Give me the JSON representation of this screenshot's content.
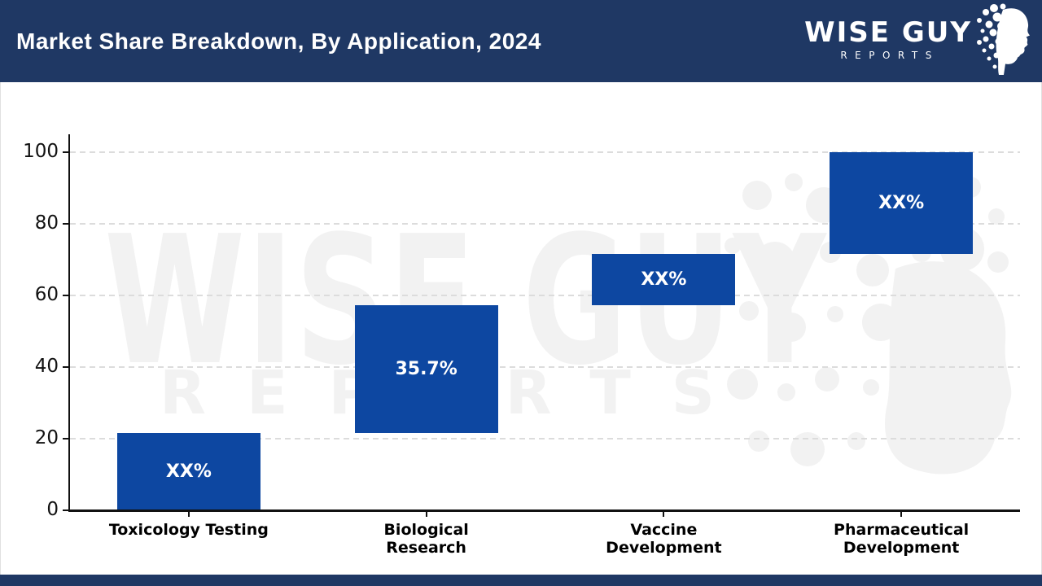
{
  "header": {
    "title": "Market Share Breakdown, By Application, 2024",
    "bg_color": "#1f3864",
    "logo": {
      "line1": "WISE GUY",
      "line2": "REPORTS"
    }
  },
  "watermark": {
    "line1": "WISE GUY",
    "line2": "REPORTS"
  },
  "footer": {
    "bg_color": "#1f3864"
  },
  "chart_data": {
    "type": "bar",
    "variant": "waterfall",
    "title": "Market Share Breakdown, By Application, 2024",
    "categories": [
      [
        "Toxicology Testing"
      ],
      [
        "Biological",
        "Research"
      ],
      [
        "Vaccine",
        "Development"
      ],
      [
        "Pharmaceutical",
        "Development"
      ]
    ],
    "bars": [
      {
        "label": "XX%",
        "start": 0,
        "end": 21.5,
        "value": 21.5
      },
      {
        "label": "35.7%",
        "start": 21.5,
        "end": 57.2,
        "value": 35.7
      },
      {
        "label": "XX%",
        "start": 57.2,
        "end": 71.6,
        "value": 14.4
      },
      {
        "label": "XX%",
        "start": 71.6,
        "end": 100,
        "value": 28.4
      }
    ],
    "yticks": [
      0,
      20,
      40,
      60,
      80,
      100
    ],
    "ylim": [
      0,
      105
    ],
    "bar_color": "#0d47a1",
    "bar_label_color": "#ffffff",
    "axis_color": "#111111",
    "grid": {
      "horizontal": true,
      "style": "dashed",
      "color": "#dcdcdc"
    },
    "legend": "none"
  }
}
